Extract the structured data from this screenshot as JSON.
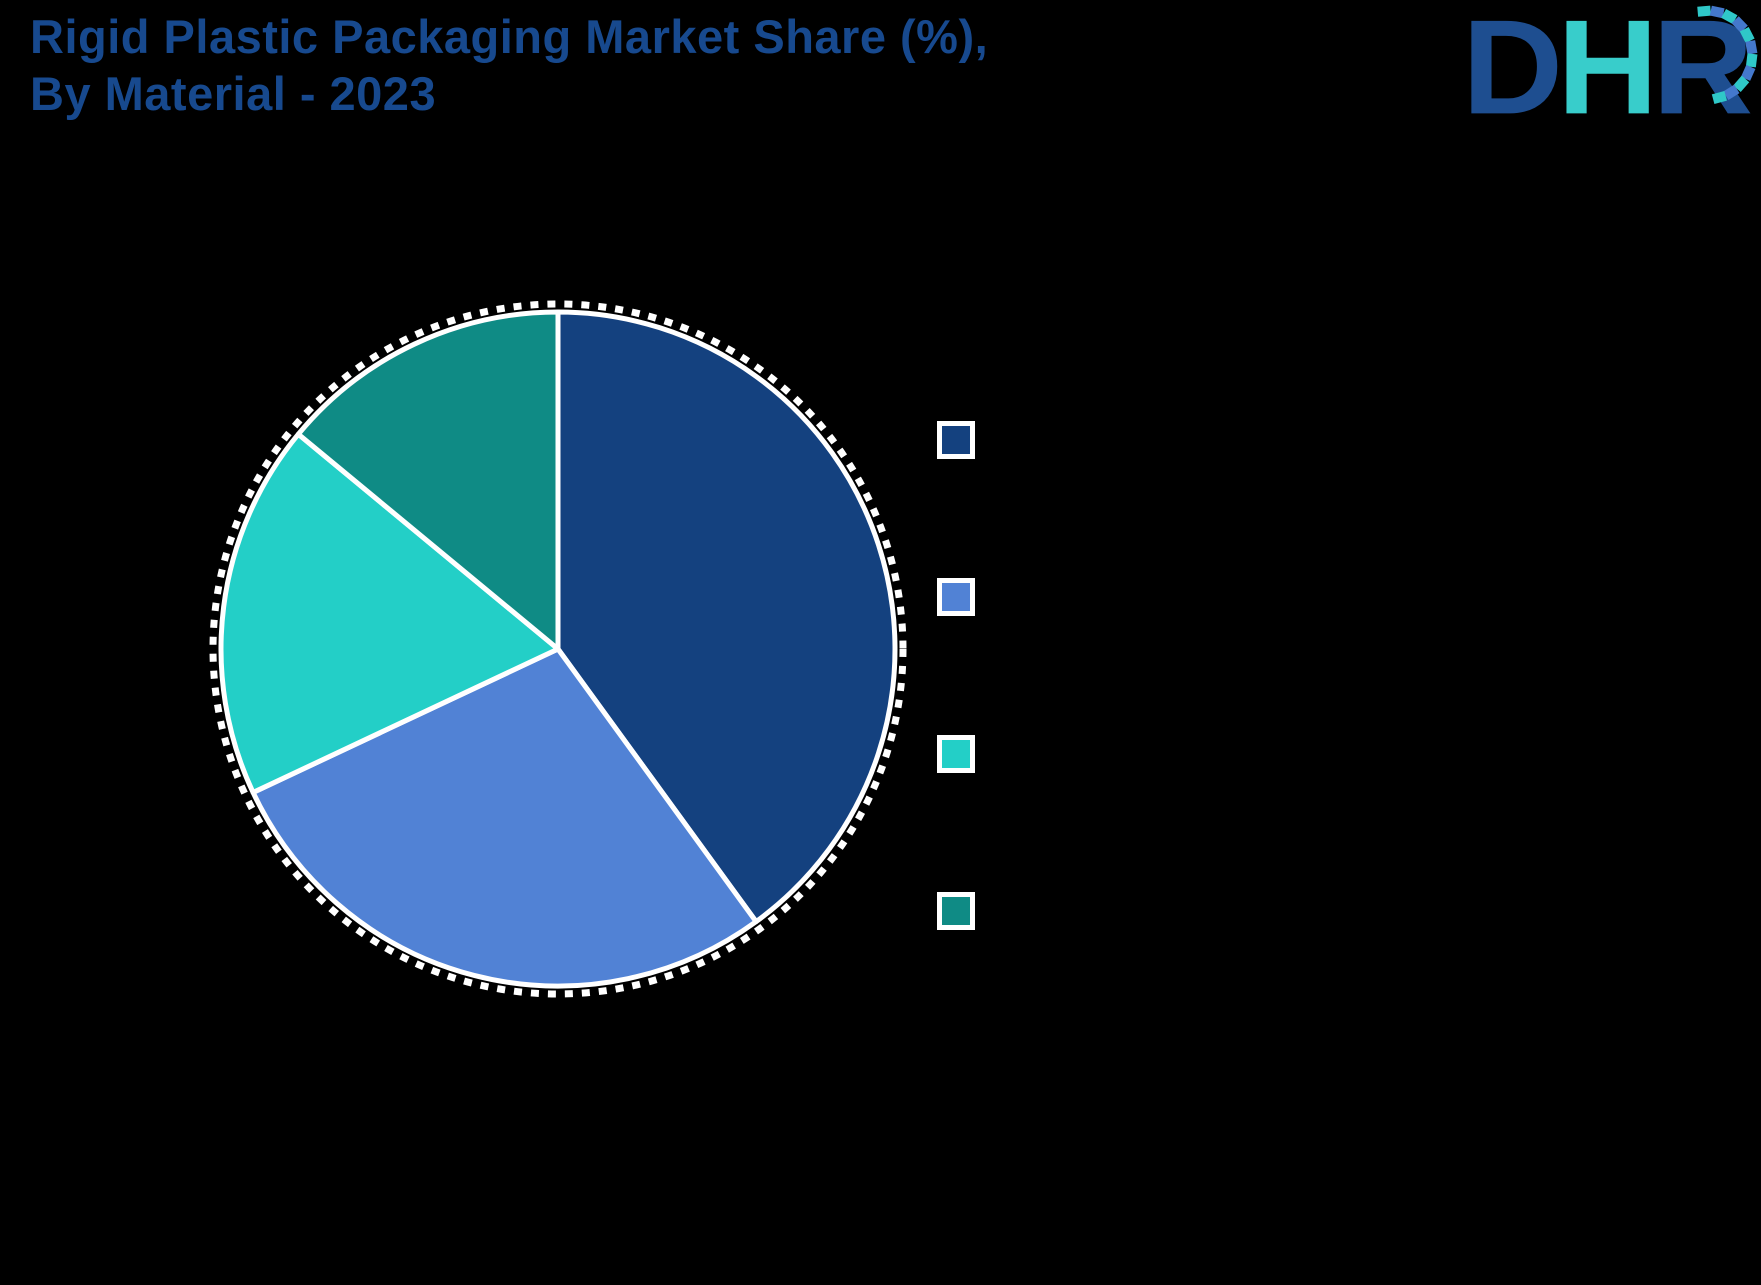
{
  "page": {
    "background_color": "#000000"
  },
  "header": {
    "title_line1": "Rigid Plastic Packaging Market Share (%),",
    "title_line2": "By Material - 2023",
    "title_color": "#17498E"
  },
  "logo": {
    "letters": [
      {
        "char": "D",
        "color": "#1E4E90"
      },
      {
        "char": "H",
        "color": "#38CDCB"
      },
      {
        "char": "R",
        "color": "#1E4E90"
      }
    ],
    "starburst_colors": [
      "#2FC8C8",
      "#4478CC"
    ]
  },
  "legend": {
    "items": [
      {
        "label": "",
        "color": "#14417F"
      },
      {
        "label": "",
        "color": "#5182D5"
      },
      {
        "label": "",
        "color": "#23CFC7"
      },
      {
        "label": "",
        "color": "#0F8B85"
      }
    ]
  },
  "chart_data": {
    "type": "pie",
    "title": "Rigid Plastic Packaging Market Share (%), By Material - 2023",
    "unit": "%",
    "start_angle_deg": 0,
    "direction": "clockwise",
    "segments": [
      {
        "label": "",
        "value_pct": 40,
        "color": "#14417F"
      },
      {
        "label": "",
        "value_pct": 28,
        "color": "#5182D5"
      },
      {
        "label": "",
        "value_pct": 18,
        "color": "#23CFC7"
      },
      {
        "label": "",
        "value_pct": 14,
        "color": "#0F8B85"
      }
    ],
    "legend_position": "right",
    "slice_labels_visible": false,
    "separator_color": "#FFFFFF",
    "outer_ring": {
      "style": "dashed",
      "color": "#FFFFFF"
    }
  }
}
